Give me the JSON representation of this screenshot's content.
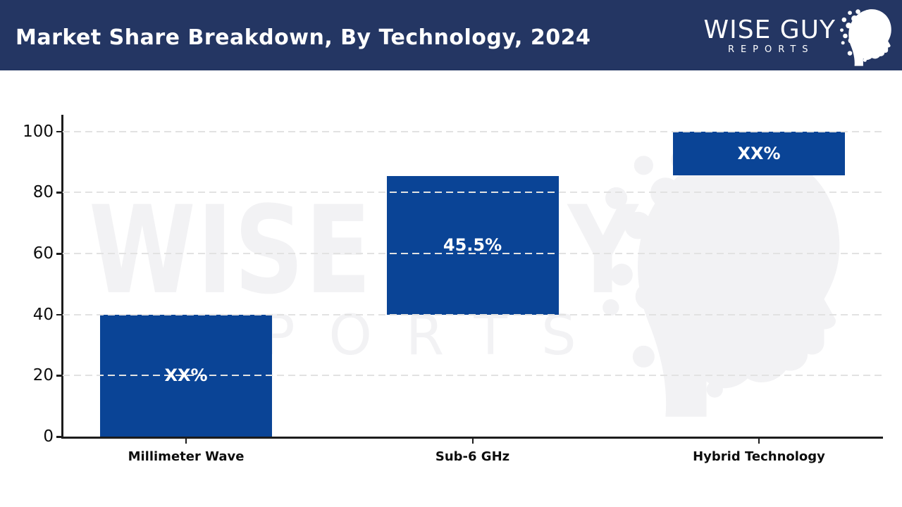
{
  "header": {
    "title": "Market Share Breakdown, By Technology, 2024",
    "brand_name": "WISE GUY",
    "brand_sub": "REPORTS",
    "bg_color": "#243663"
  },
  "watermark": {
    "line1": "WISE GUY",
    "line2": "REPORTS",
    "face_icon": "dotted-head-profile-icon",
    "color": "#f2f2f4"
  },
  "chart_data": {
    "type": "bar",
    "subtype": "floating-segment-breakdown",
    "title": "Market Share Breakdown, By Technology, 2024",
    "categories": [
      "Millimeter Wave",
      "Sub-6 GHz",
      "Hybrid Technology"
    ],
    "segments": [
      {
        "category": "Millimeter Wave",
        "start": 0,
        "end": 40,
        "label": "XX%"
      },
      {
        "category": "Sub-6 GHz",
        "start": 40,
        "end": 85.5,
        "label": "45.5%"
      },
      {
        "category": "Hybrid Technology",
        "start": 85.5,
        "end": 100,
        "label": "XX%"
      }
    ],
    "xlabel": "",
    "ylabel": "",
    "yticks": [
      0,
      20,
      40,
      60,
      80,
      100
    ],
    "ylim": [
      0,
      105
    ],
    "bar_color": "#0a4496",
    "value_label_color": "#ffffff",
    "grid": "horizontal-dashed",
    "gridline_color": "#e2e2e2",
    "gridlines_above_bars": true,
    "legend": "none"
  }
}
